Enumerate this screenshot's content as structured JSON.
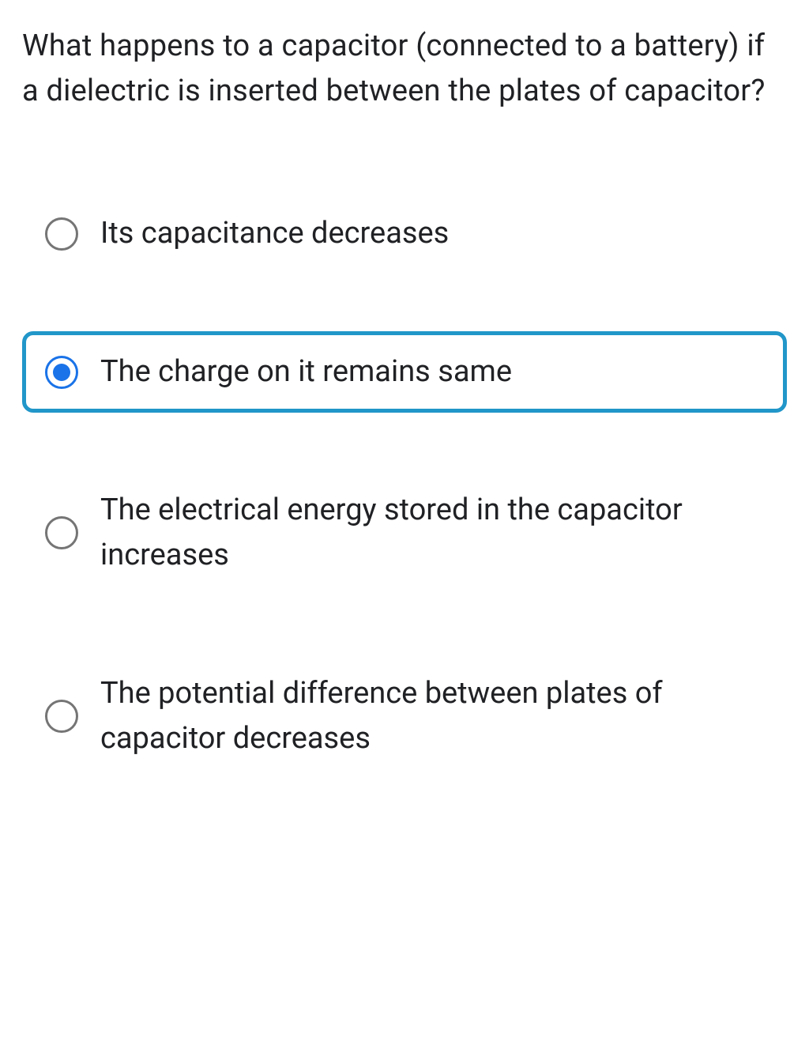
{
  "question": {
    "text": "What happens to a capacitor (connected to a battery) if a dielectric is inserted between the plates of capacitor?",
    "font_size": 38,
    "text_color": "#202124"
  },
  "options": [
    {
      "label": "Its capacitance decreases",
      "selected": false
    },
    {
      "label": "The charge on it remains same",
      "selected": true
    },
    {
      "label": "The electrical energy stored in the capacitor increases",
      "selected": false
    },
    {
      "label": "The potential difference between plates of capacitor decreases",
      "selected": false
    }
  ],
  "colors": {
    "background": "#ffffff",
    "text": "#202124",
    "radio_border": "#757575",
    "accent": "#1a73e8",
    "selected_border": "#2196c9"
  }
}
